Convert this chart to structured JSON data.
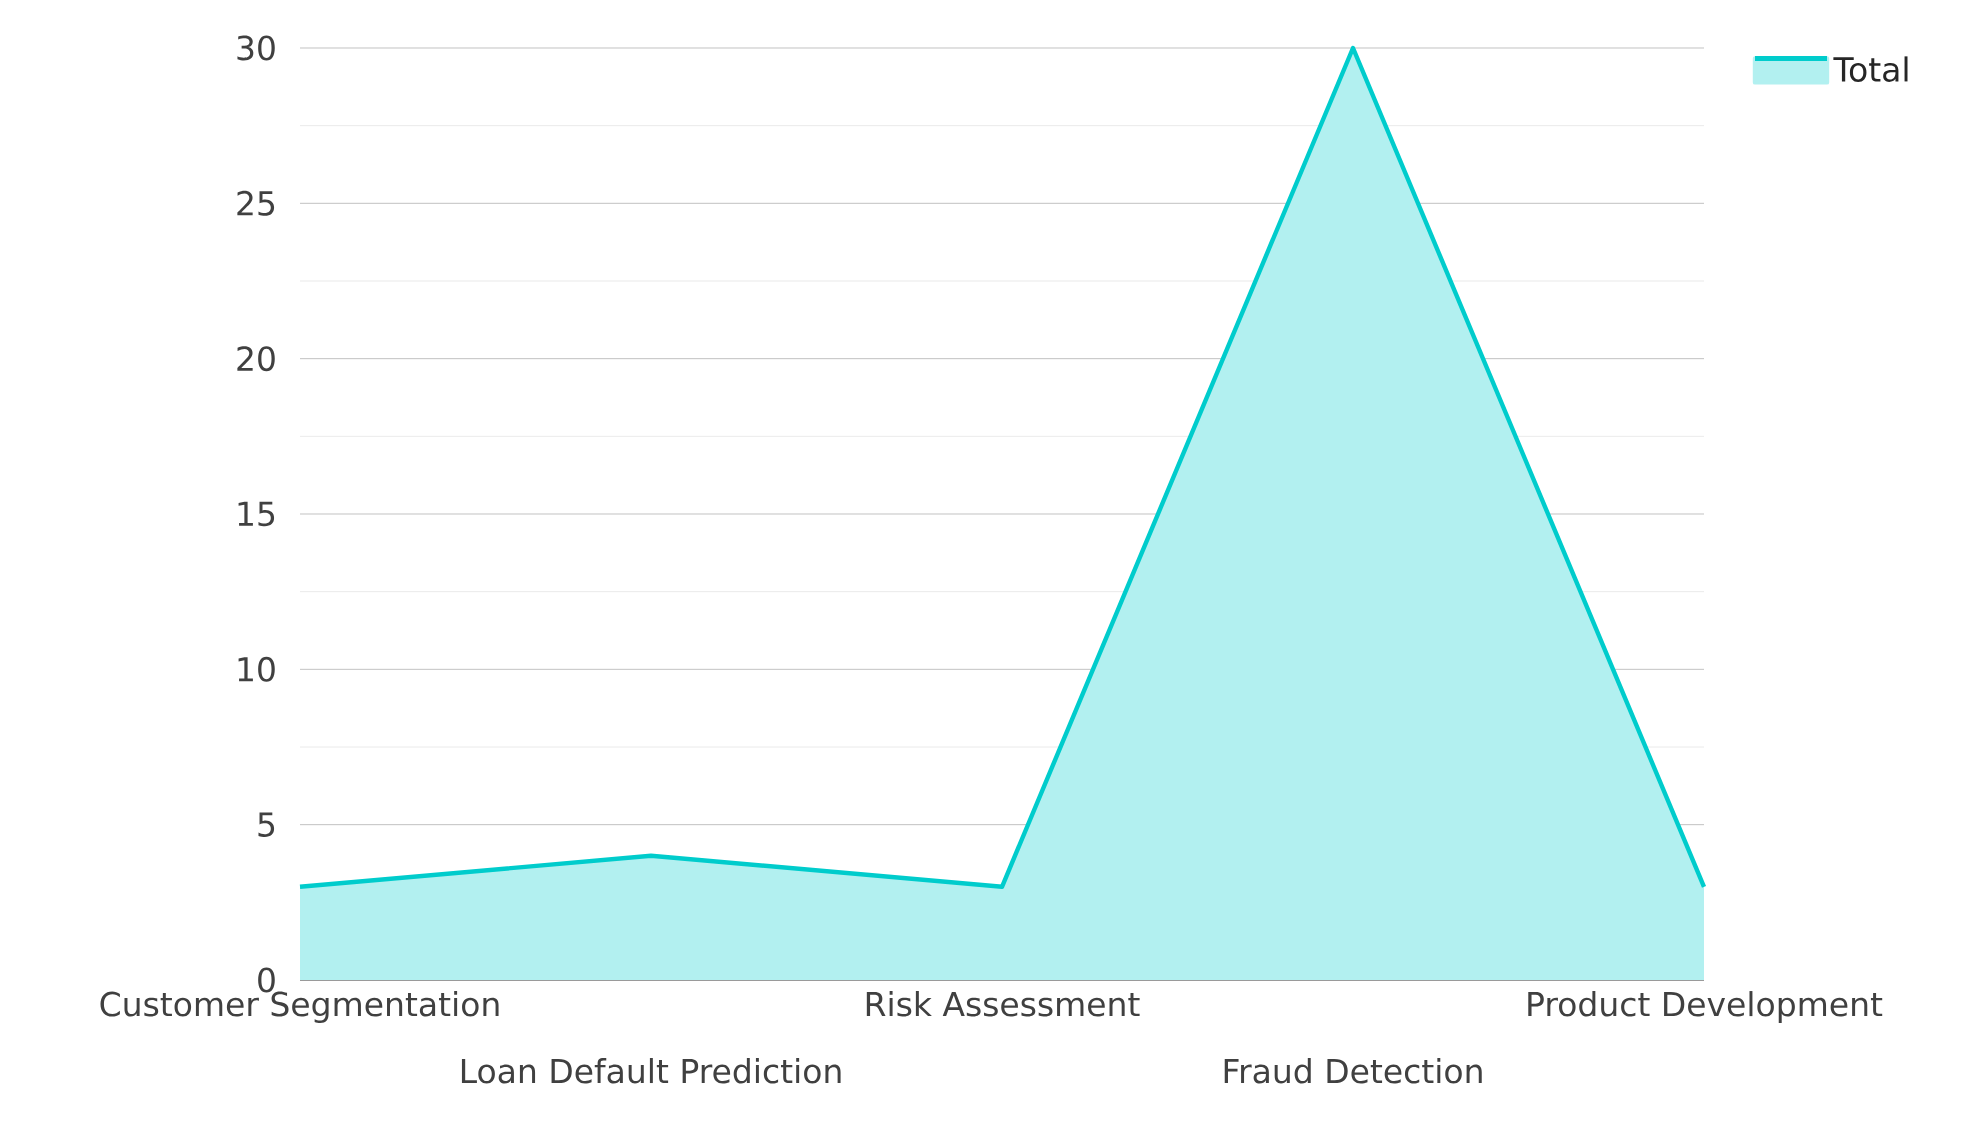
{
  "chart_data": {
    "type": "area",
    "categories": [
      "Customer Segmentation",
      "Loan Default Prediction",
      "Risk Assessment",
      "Fraud Detection",
      "Product Development"
    ],
    "series": [
      {
        "name": "Total",
        "color": "#00cccc",
        "values": [
          3,
          4,
          3,
          30,
          3
        ]
      }
    ],
    "ylim": [
      0,
      30
    ],
    "yticks": [
      0,
      5,
      10,
      15,
      20,
      25,
      30
    ],
    "grid": "y",
    "legend": "top right"
  }
}
